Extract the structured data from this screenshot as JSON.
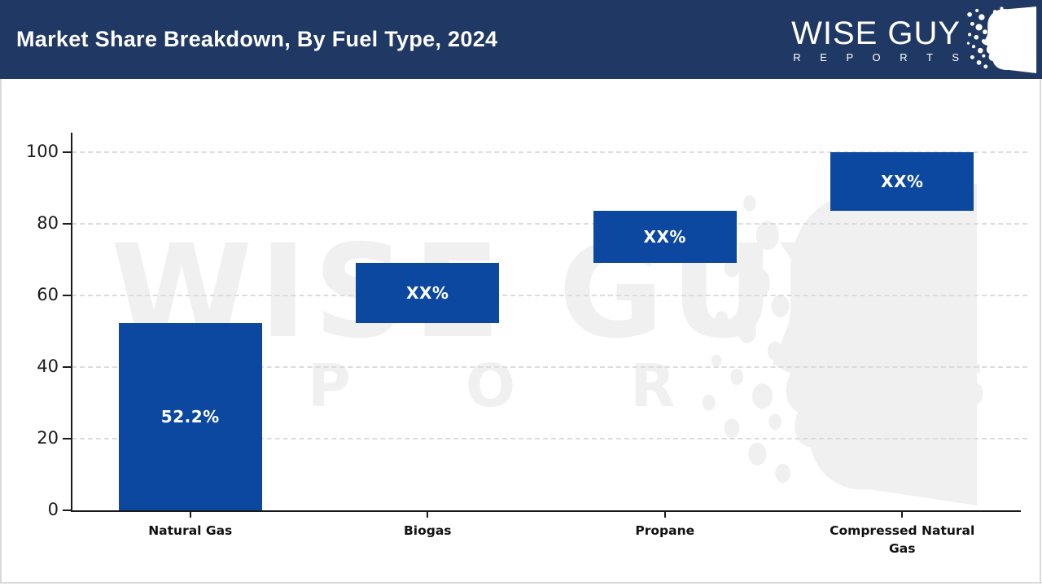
{
  "header": {
    "title": "Market Share Breakdown, By Fuel Type, 2024",
    "bg_color": "#1f3864",
    "logo": {
      "line1": "WISE GUY",
      "line2": "R E P O R T S",
      "head_icon": "dotted-face-profile"
    }
  },
  "watermark": {
    "line1": "WISE GUY",
    "line2": "P O R T S",
    "color": "#f0f0f0",
    "head_icon": "dotted-face-profile"
  },
  "chart_data": {
    "type": "bar",
    "subtype": "floating-waterfall",
    "title": "Market Share Breakdown, By Fuel Type, 2024",
    "xlabel": "",
    "ylabel": "",
    "categories": [
      "Natural Gas",
      "Biogas",
      "Propane",
      "Compressed Natural Gas"
    ],
    "segments": [
      {
        "category": "Natural Gas",
        "start": 0,
        "end": 52.2,
        "label": "52.2%"
      },
      {
        "category": "Biogas",
        "start": 52.2,
        "end": 69.2,
        "label": "XX%"
      },
      {
        "category": "Propane",
        "start": 69.2,
        "end": 83.6,
        "label": "XX%"
      },
      {
        "category": "Compressed Natural Gas",
        "start": 83.6,
        "end": 100,
        "label": "XX%"
      }
    ],
    "yticks": [
      0,
      20,
      40,
      60,
      80,
      100
    ],
    "ylim": [
      0,
      106
    ],
    "grid": "horizontal-dashed",
    "grid_color": "#dcdcdc",
    "bar_color": "#0c47a0",
    "bar_label_color": "#ffffff",
    "axis_color": "#1a1a1a",
    "legend": "none"
  }
}
